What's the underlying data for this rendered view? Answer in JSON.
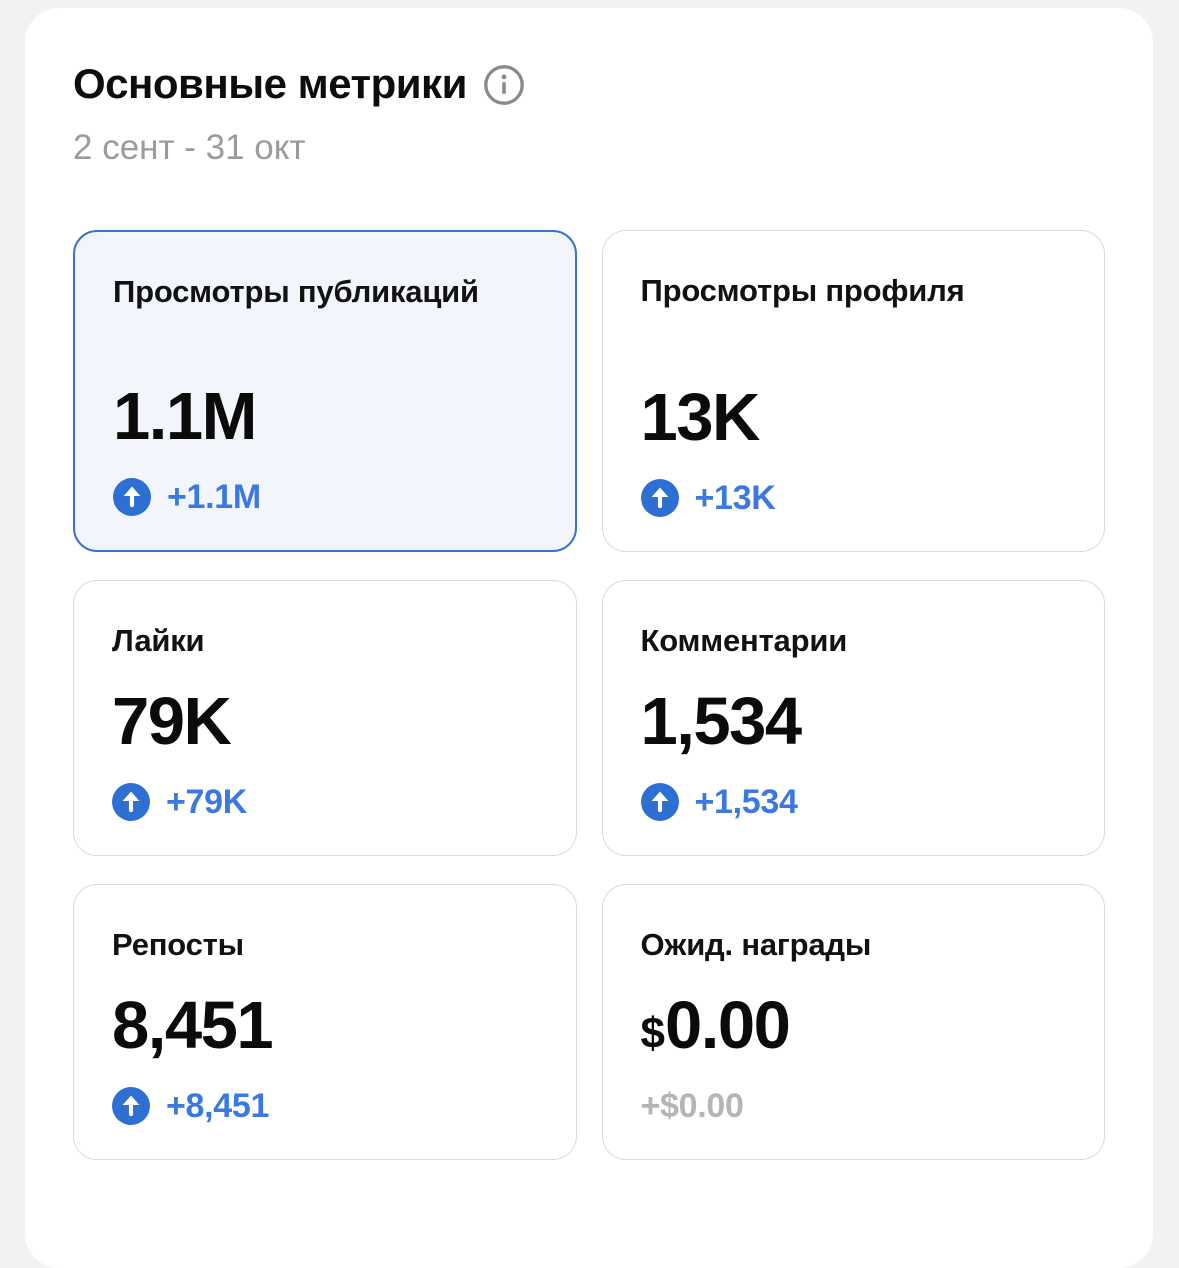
{
  "page": {
    "background_color": "#f2f2f3",
    "panel_color": "#ffffff"
  },
  "header": {
    "title": "Основные метрики",
    "info_icon": "info-icon",
    "date_range": "2 сент - 31 окт"
  },
  "colors": {
    "accent_blue_text": "#3b78e0",
    "trend_circle_blue": "#2e6fd4",
    "selected_card_border": "#3a72cc",
    "selected_card_background": "#f2f5fb",
    "card_border": "#dadada",
    "muted_delta_gray": "#b5b5b5",
    "date_gray": "#9b9b9b",
    "info_icon_gray": "#8a8a8a"
  },
  "metrics": [
    {
      "label": "Просмотры публикаций",
      "value": "1.1M",
      "delta": "+1.1M",
      "selected": true,
      "trend_icon": true,
      "muted": false
    },
    {
      "label": "Просмотры профиля",
      "value": "13K",
      "delta": "+13K",
      "selected": false,
      "trend_icon": true,
      "muted": false
    },
    {
      "label": "Лайки",
      "value": "79K",
      "delta": "+79K",
      "selected": false,
      "trend_icon": true,
      "muted": false
    },
    {
      "label": "Комментарии",
      "value": "1,534",
      "delta": "+1,534",
      "selected": false,
      "trend_icon": true,
      "muted": false
    },
    {
      "label": "Репосты",
      "value": "8,451",
      "delta": "+8,451",
      "selected": false,
      "trend_icon": true,
      "muted": false
    },
    {
      "label": "Ожид. награды",
      "value": "$0.00",
      "delta": "+$0.00",
      "selected": false,
      "trend_icon": false,
      "muted": true
    }
  ]
}
